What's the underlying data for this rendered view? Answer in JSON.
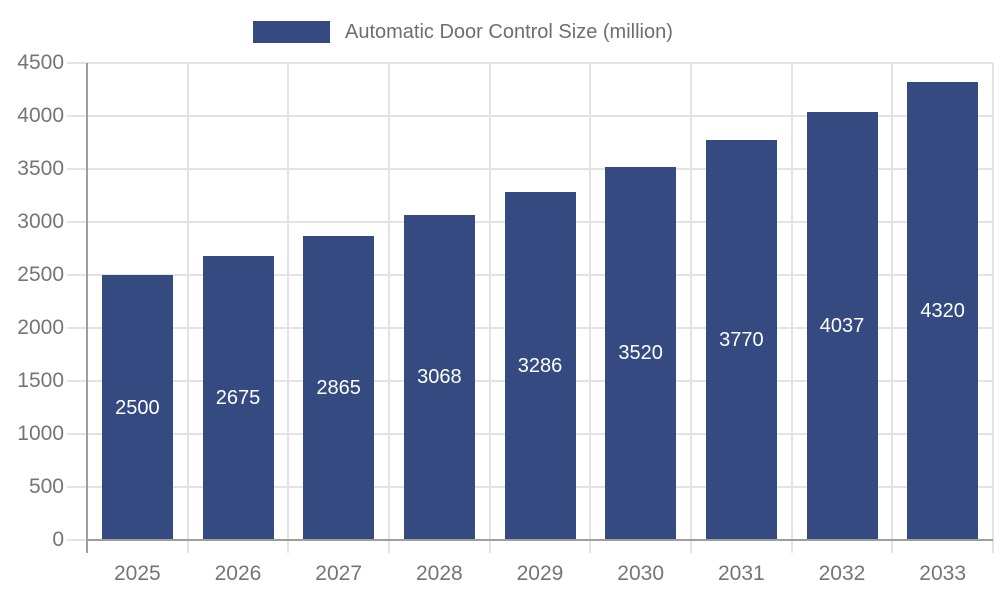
{
  "chart_data": {
    "type": "bar",
    "title": "",
    "categories": [
      "2025",
      "2026",
      "2027",
      "2028",
      "2029",
      "2030",
      "2031",
      "2032",
      "2033"
    ],
    "series": [
      {
        "name": "Automatic Door Control Size (million)",
        "values": [
          2500,
          2675,
          2865,
          3068,
          3286,
          3520,
          3770,
          4037,
          4320
        ]
      }
    ],
    "xlabel": "",
    "ylabel": "",
    "ylim": [
      0,
      4500
    ],
    "ytick_step": 500,
    "grid": true,
    "legend_position": "top",
    "bar_value_labels_visible": true,
    "colors": {
      "bar": "#344a80",
      "value_label": "#ffffff",
      "axis_text": "#757575",
      "legend_text": "#6e6e6e",
      "axis_line": "#9e9e9e",
      "gridline": "#e3e3e3",
      "background": "#ffffff"
    }
  }
}
